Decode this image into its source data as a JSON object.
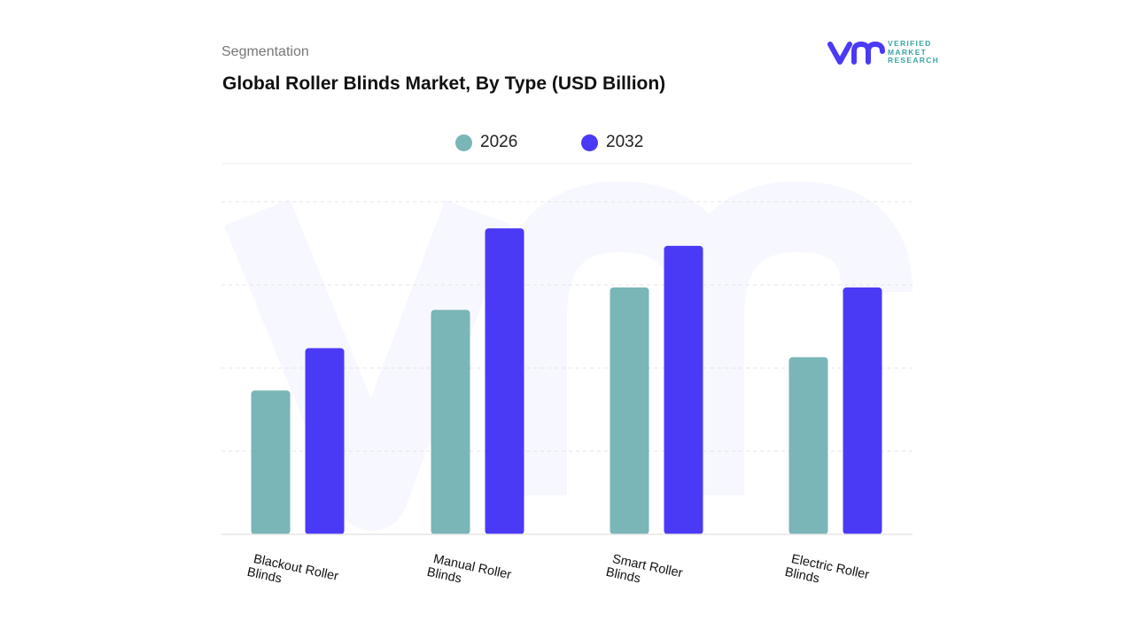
{
  "header": {
    "section": "Segmentation",
    "title": "Global Roller Blinds Market, By Type (USD Billion)"
  },
  "logo": {
    "text_lines": [
      "VERIFIED",
      "MARKET",
      "RESEARCH"
    ]
  },
  "chart_data": {
    "type": "bar",
    "title": "Global Roller Blinds Market, By Type (USD Billion)",
    "categories": [
      [
        "Blackout Roller",
        "Blinds"
      ],
      [
        "Manual Roller",
        "Blinds"
      ],
      [
        "Smart Roller",
        "Blinds"
      ],
      [
        "Electric Roller",
        "Blinds"
      ]
    ],
    "series": [
      {
        "name": "2026",
        "color": "#7ab5b8",
        "values": [
          1.73,
          2.7,
          2.97,
          2.13
        ]
      },
      {
        "name": "2032",
        "color": "#4b3af5",
        "values": [
          2.24,
          3.68,
          3.47,
          2.97
        ]
      }
    ],
    "ylim": [
      0,
      4
    ],
    "y_tick_labels_shown": false,
    "grid": true,
    "legend": "top-center",
    "note_values": "relative units; y-axis not labeled"
  }
}
